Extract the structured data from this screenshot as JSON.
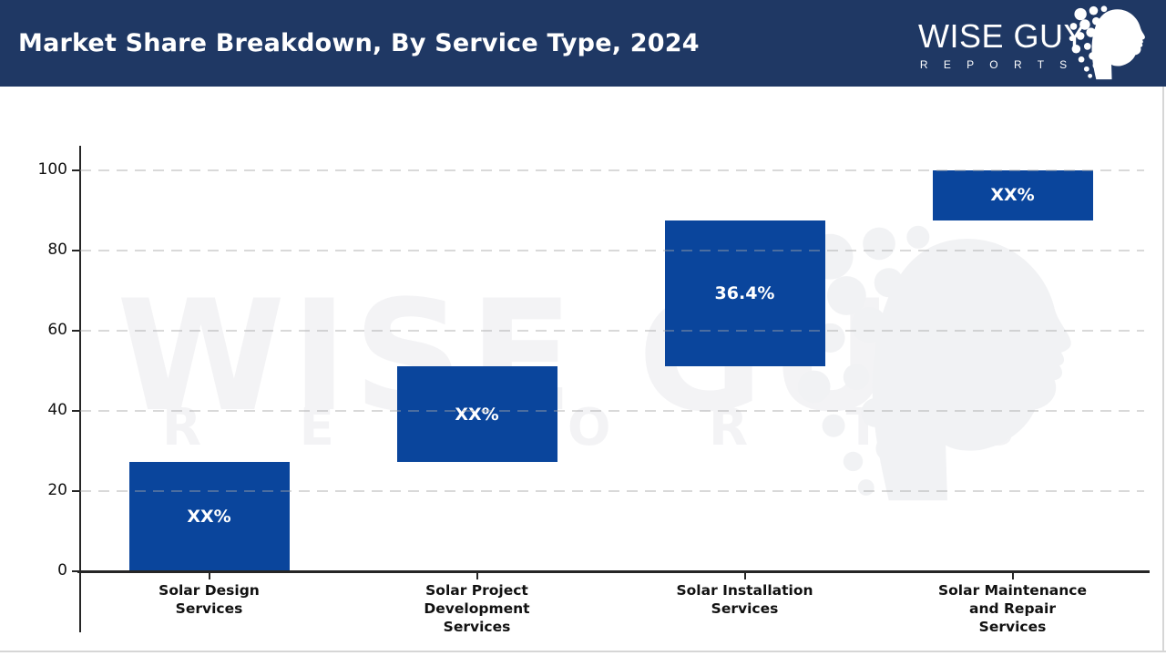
{
  "header": {
    "title": "Market Share Breakdown, By Service Type, 2024",
    "logo": {
      "name": "WISE GUY",
      "sub": "R E P O R T S"
    }
  },
  "watermark": {
    "line1": "WISE GUY",
    "line2": "R E P O R T S"
  },
  "colors": {
    "header_bg": "#1f3864",
    "bar": "#0a459c",
    "axis": "#262626",
    "gridline": "#d4d4d4",
    "watermark": "#f3f3f5",
    "bar_label": "#ffffff"
  },
  "chart_data": {
    "type": "bar",
    "subtype": "floating-segment (waterfall-style) market share bars",
    "title": "Market Share Breakdown, By Service Type, 2024",
    "xlabel": "",
    "ylabel": "",
    "categories": [
      "Solar Design Services",
      "Solar Project Development Services",
      "Solar Installation Services",
      "Solar Maintenance and Repair Services"
    ],
    "category_label_lines": [
      [
        "Solar Design",
        "Services"
      ],
      [
        "Solar Project",
        "Development",
        "Services"
      ],
      [
        "Solar Installation",
        "Services"
      ],
      [
        "Solar Maintenance",
        "and Repair",
        "Services"
      ]
    ],
    "segments": [
      {
        "category": "Solar Design Services",
        "start": 0,
        "end": 27.3,
        "label": "XX%"
      },
      {
        "category": "Solar Project Development Services",
        "start": 27.3,
        "end": 51.0,
        "label": "XX%"
      },
      {
        "category": "Solar Installation Services",
        "start": 51.0,
        "end": 87.4,
        "label": "36.4%"
      },
      {
        "category": "Solar Maintenance and Repair Services",
        "start": 87.4,
        "end": 100,
        "label": "XX%"
      }
    ],
    "yticks": [
      0,
      20,
      40,
      60,
      80,
      100
    ],
    "ylim": [
      0,
      107
    ],
    "grid": "horizontal dashed, drawn over bars",
    "legend": "none"
  }
}
